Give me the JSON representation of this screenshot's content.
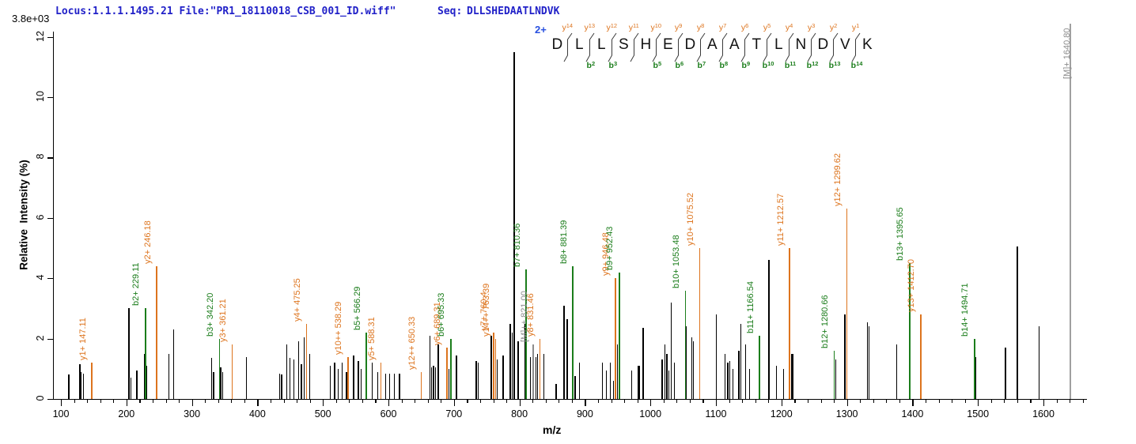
{
  "header": {
    "locus_file": "Locus:1.1.1.1495.21 File:\"PR1_18110018_CSB_001_ID.wiff\"",
    "seq_label": "Seq:",
    "sequence": "DLLSHEDAATLNDVK"
  },
  "y_axis": {
    "scale_note": "3.8e+03",
    "label": "Relative  Intensity (%)",
    "ticks": [
      12,
      10,
      8,
      6,
      4,
      2,
      0
    ]
  },
  "x_axis": {
    "label": "m/z",
    "ticks": [
      100,
      200,
      300,
      400,
      500,
      600,
      700,
      800,
      900,
      1000,
      1100,
      1200,
      1300,
      1400,
      1500,
      1600
    ],
    "minor_step": 20,
    "min": 100,
    "max": 1660
  },
  "peptide": {
    "charge": "2+",
    "residues": [
      "D",
      "L",
      "L",
      "S",
      "H",
      "E",
      "D",
      "A",
      "A",
      "T",
      "L",
      "N",
      "D",
      "V",
      "K"
    ],
    "boundaries": [
      {
        "y": "y14",
        "b": ""
      },
      {
        "y": "y13",
        "b": "b2"
      },
      {
        "y": "y12",
        "b": "b3"
      },
      {
        "y": "y11",
        "b": ""
      },
      {
        "y": "y10",
        "b": "b5"
      },
      {
        "y": "y9",
        "b": "b6"
      },
      {
        "y": "y8",
        "b": "b7"
      },
      {
        "y": "y7",
        "b": "b8"
      },
      {
        "y": "y6",
        "b": "b9"
      },
      {
        "y": "y5",
        "b": "b10"
      },
      {
        "y": "y4",
        "b": "b11"
      },
      {
        "y": "y3",
        "b": "b12"
      },
      {
        "y": "y2",
        "b": "b13"
      },
      {
        "y": "y1",
        "b": "b14"
      }
    ]
  },
  "colors": {
    "y_ion": "#dd741e",
    "b_ion": "#1b7d1b",
    "precursor_gray": "#a0a0a0",
    "precursor_label_gray": "#8c8c8c",
    "peak_black": "#000000",
    "header_blue": "#2121c8",
    "charge_blue": "#2850e0"
  },
  "chart_data": {
    "type": "bar",
    "subtype": "ms2-fragmentation-spectrum",
    "title": "",
    "xlabel": "m/z",
    "ylabel": "Relative  Intensity (%)",
    "xlim": [
      100,
      1660
    ],
    "ylim": [
      0,
      12.2
    ],
    "intensity_scale_top": "3.8e+03",
    "annotated_peaks": [
      {
        "mz": 147.11,
        "intensity_pct": 1.2,
        "ion": "y1+",
        "label": "y1+ 147.11",
        "series": "y"
      },
      {
        "mz": 229.11,
        "intensity_pct": 3.0,
        "ion": "b2+",
        "label": "b2+ 229.11",
        "series": "b"
      },
      {
        "mz": 246.18,
        "intensity_pct": 4.4,
        "ion": "y2+",
        "label": "y2+ 246.18",
        "series": "y"
      },
      {
        "mz": 342.2,
        "intensity_pct": 2.0,
        "ion": "b3+",
        "label": "b3+ 342.20",
        "series": "b"
      },
      {
        "mz": 361.21,
        "intensity_pct": 1.8,
        "ion": "y3+",
        "label": "y3+ 361.21",
        "series": "y"
      },
      {
        "mz": 475.25,
        "intensity_pct": 2.5,
        "ion": "y4+",
        "label": "y4+ 475.25",
        "series": "y"
      },
      {
        "mz": 538.29,
        "intensity_pct": 1.4,
        "ion": "y10++",
        "label": "y10++ 538.29",
        "series": "y"
      },
      {
        "mz": 566.29,
        "intensity_pct": 2.2,
        "ion": "b5+",
        "label": "b5+ 566.29",
        "series": "b"
      },
      {
        "mz": 588.31,
        "intensity_pct": 1.2,
        "ion": "y5+",
        "label": "y5+ 588.31",
        "series": "y"
      },
      {
        "mz": 650.33,
        "intensity_pct": 0.9,
        "ion": "y12++",
        "label": "y12++ 650.33",
        "series": "y"
      },
      {
        "mz": 689.31,
        "intensity_pct": 1.7,
        "ion": "y6+",
        "label": "y6+ 689.31",
        "series": "y"
      },
      {
        "mz": 695.33,
        "intensity_pct": 2.0,
        "ion": "b6+",
        "label": "b6+ 695.33",
        "series": "b"
      },
      {
        "mz": 760.4,
        "intensity_pct": 2.2,
        "ion": "y7+",
        "label": "y7+ 760.4",
        "series": "y"
      },
      {
        "mz": 763.39,
        "intensity_pct": 2.0,
        "ion": "y14++",
        "label": "y14++ 763.39",
        "series": "y"
      },
      {
        "mz": 810.36,
        "intensity_pct": 4.3,
        "ion": "b7+",
        "label": "b7+ 810.36",
        "series": "b"
      },
      {
        "mz": 821.0,
        "intensity_pct": 1.8,
        "ion": "[M]++",
        "label": "[M]++ 821.00",
        "series": "M"
      },
      {
        "mz": 831.46,
        "intensity_pct": 2.0,
        "ion": "y8+",
        "label": "y8+ 831.46",
        "series": "y"
      },
      {
        "mz": 881.39,
        "intensity_pct": 4.4,
        "ion": "b8+",
        "label": "b8+ 881.39",
        "series": "b"
      },
      {
        "mz": 946.48,
        "intensity_pct": 4.0,
        "ion": "y9+",
        "label": "y9+ 946.48",
        "series": "y"
      },
      {
        "mz": 952.43,
        "intensity_pct": 4.2,
        "ion": "b9+",
        "label": "b9+ 952.43",
        "series": "b"
      },
      {
        "mz": 1053.48,
        "intensity_pct": 3.6,
        "ion": "b10+",
        "label": "b10+ 1053.48",
        "series": "b"
      },
      {
        "mz": 1075.52,
        "intensity_pct": 5.0,
        "ion": "y10+",
        "label": "y10+ 1075.52",
        "series": "y"
      },
      {
        "mz": 1166.54,
        "intensity_pct": 2.1,
        "ion": "b11+",
        "label": "b11+ 1166.54",
        "series": "b"
      },
      {
        "mz": 1212.57,
        "intensity_pct": 5.0,
        "ion": "y11+",
        "label": "y11+ 1212.57",
        "series": "y"
      },
      {
        "mz": 1280.66,
        "intensity_pct": 1.6,
        "ion": "b12+",
        "label": "b12+ 1280.66",
        "series": "b"
      },
      {
        "mz": 1299.62,
        "intensity_pct": 6.3,
        "ion": "y12+",
        "label": "y12+ 1299.62",
        "series": "y"
      },
      {
        "mz": 1395.65,
        "intensity_pct": 4.5,
        "ion": "b13+",
        "label": "b13+ 1395.65",
        "series": "b"
      },
      {
        "mz": 1412.7,
        "intensity_pct": 2.8,
        "ion": "y13+",
        "label": "y13+ 1412.70",
        "series": "y"
      },
      {
        "mz": 1494.71,
        "intensity_pct": 2.0,
        "ion": "b14+",
        "label": "b14+ 1494.71",
        "series": "b"
      }
    ],
    "precursor": {
      "mz": 1640.8,
      "label": "[M]+ 1640.80"
    },
    "unannotated_peaks": [
      [
        112,
        0.8
      ],
      [
        129,
        1.15
      ],
      [
        131,
        0.9
      ],
      [
        134,
        0.85
      ],
      [
        204,
        3.0
      ],
      [
        207,
        0.7
      ],
      [
        216,
        0.95
      ],
      [
        227,
        1.5
      ],
      [
        231,
        1.1
      ],
      [
        265,
        1.5
      ],
      [
        272,
        2.3
      ],
      [
        330,
        1.35
      ],
      [
        333,
        0.9
      ],
      [
        344,
        1.05
      ],
      [
        347,
        0.9
      ],
      [
        383,
        1.4
      ],
      [
        434,
        0.85
      ],
      [
        437,
        0.8
      ],
      [
        445,
        1.8
      ],
      [
        450,
        1.35
      ],
      [
        456,
        1.3
      ],
      [
        463,
        1.9
      ],
      [
        467,
        1.15
      ],
      [
        471,
        2.05
      ],
      [
        480,
        1.5
      ],
      [
        511,
        1.1
      ],
      [
        518,
        1.2
      ],
      [
        523,
        1.0
      ],
      [
        529,
        1.2
      ],
      [
        536,
        0.9
      ],
      [
        547,
        1.45
      ],
      [
        554,
        1.25
      ],
      [
        558,
        1.0
      ],
      [
        575,
        1.2
      ],
      [
        584,
        0.9
      ],
      [
        596,
        0.85
      ],
      [
        602,
        0.85
      ],
      [
        609,
        0.85
      ],
      [
        617,
        0.85
      ],
      [
        663,
        2.1
      ],
      [
        666,
        1.05
      ],
      [
        669,
        1.1
      ],
      [
        672,
        1.05
      ],
      [
        676,
        1.8
      ],
      [
        692,
        1.0
      ],
      [
        704,
        1.45
      ],
      [
        734,
        1.25
      ],
      [
        737,
        1.2
      ],
      [
        757,
        2.1
      ],
      [
        766,
        1.3
      ],
      [
        775,
        1.45
      ],
      [
        786,
        2.5
      ],
      [
        789,
        2.2
      ],
      [
        792,
        11.5
      ],
      [
        798,
        1.9
      ],
      [
        809,
        2.5
      ],
      [
        817,
        1.4
      ],
      [
        820,
        1.3
      ],
      [
        825,
        1.4
      ],
      [
        828,
        1.5
      ],
      [
        837,
        1.5
      ],
      [
        856,
        0.5
      ],
      [
        868,
        3.1
      ],
      [
        873,
        2.65
      ],
      [
        885,
        0.75
      ],
      [
        892,
        1.2
      ],
      [
        927,
        1.2
      ],
      [
        933,
        0.95
      ],
      [
        939,
        1.2
      ],
      [
        944,
        0.6
      ],
      [
        950,
        1.8
      ],
      [
        971,
        0.95
      ],
      [
        981,
        1.1
      ],
      [
        983,
        1.1
      ],
      [
        989,
        2.35
      ],
      [
        1018,
        1.3
      ],
      [
        1022,
        1.8
      ],
      [
        1025,
        1.5
      ],
      [
        1028,
        0.95
      ],
      [
        1032,
        3.2
      ],
      [
        1037,
        1.2
      ],
      [
        1055,
        2.4
      ],
      [
        1063,
        2.05
      ],
      [
        1066,
        1.9
      ],
      [
        1101,
        2.8
      ],
      [
        1114,
        1.5
      ],
      [
        1118,
        1.2
      ],
      [
        1121,
        1.25
      ],
      [
        1126,
        1.0
      ],
      [
        1135,
        1.6
      ],
      [
        1138,
        2.5
      ],
      [
        1145,
        1.8
      ],
      [
        1151,
        1.0
      ],
      [
        1181,
        4.6
      ],
      [
        1192,
        1.1
      ],
      [
        1203,
        1.0
      ],
      [
        1213,
        1.0
      ],
      [
        1216,
        1.5
      ],
      [
        1218,
        1.5
      ],
      [
        1283,
        1.3
      ],
      [
        1297,
        2.8
      ],
      [
        1331,
        2.55
      ],
      [
        1334,
        2.4
      ],
      [
        1376,
        1.8
      ],
      [
        1496,
        1.4
      ],
      [
        1542,
        1.7
      ],
      [
        1560,
        5.05
      ],
      [
        1593,
        2.4
      ]
    ]
  }
}
